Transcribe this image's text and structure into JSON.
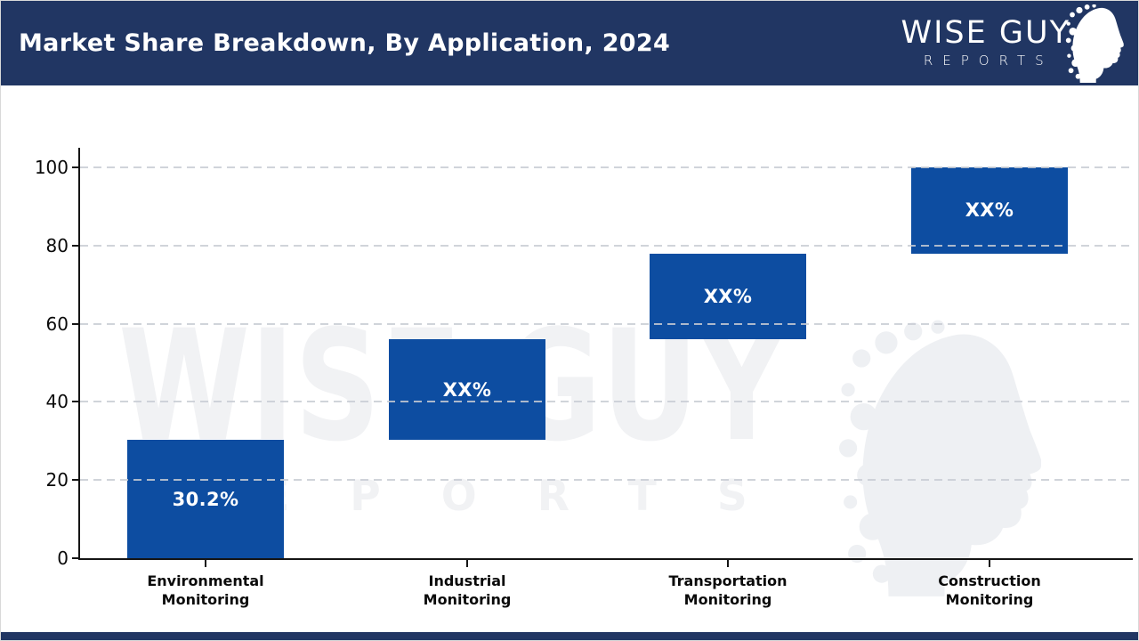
{
  "header": {
    "title": "Market Share Breakdown, By Application, 2024",
    "logo": {
      "brand": "WISE GUY",
      "sub": "REPORTS"
    }
  },
  "watermark": {
    "brand": "WISE GUY",
    "sub": "REPORTS"
  },
  "colors": {
    "header_bg": "#213663",
    "footer_bg": "#213663",
    "bar_fill": "#0d4da1",
    "bar_label_text": "#ffffff",
    "title_text": "#ffffff",
    "axis_line": "#151515",
    "gridline": "#d6dae0",
    "watermark_gray": "#f1f2f4",
    "background": "#ffffff"
  },
  "chart_data": {
    "type": "bar",
    "variant": "waterfall",
    "title": "Market Share Breakdown, By Application, 2024",
    "categories": [
      "Environmental Monitoring",
      "Industrial Monitoring",
      "Transportation Monitoring",
      "Construction Monitoring"
    ],
    "category_label_lines": [
      [
        "Environmental",
        "Monitoring"
      ],
      [
        "Industrial",
        "Monitoring"
      ],
      [
        "Transportation",
        "Monitoring"
      ],
      [
        "Construction",
        "Monitoring"
      ]
    ],
    "series": [
      {
        "name": "Market Share",
        "segments": [
          {
            "category": "Environmental Monitoring",
            "start": 0,
            "end": 30.2,
            "label": "30.2%"
          },
          {
            "category": "Industrial Monitoring",
            "start": 30.2,
            "end": 56,
            "label": "XX%"
          },
          {
            "category": "Transportation Monitoring",
            "start": 56,
            "end": 78,
            "label": "XX%"
          },
          {
            "category": "Construction Monitoring",
            "start": 78,
            "end": 100,
            "label": "XX%"
          }
        ]
      }
    ],
    "xlabel": "",
    "ylabel": "",
    "ylim": [
      0,
      104
    ],
    "yticks": [
      0,
      20,
      40,
      60,
      80,
      100
    ],
    "grid": "horizontal-dashed",
    "legend": "none",
    "bar_color": "#0d4da1"
  }
}
